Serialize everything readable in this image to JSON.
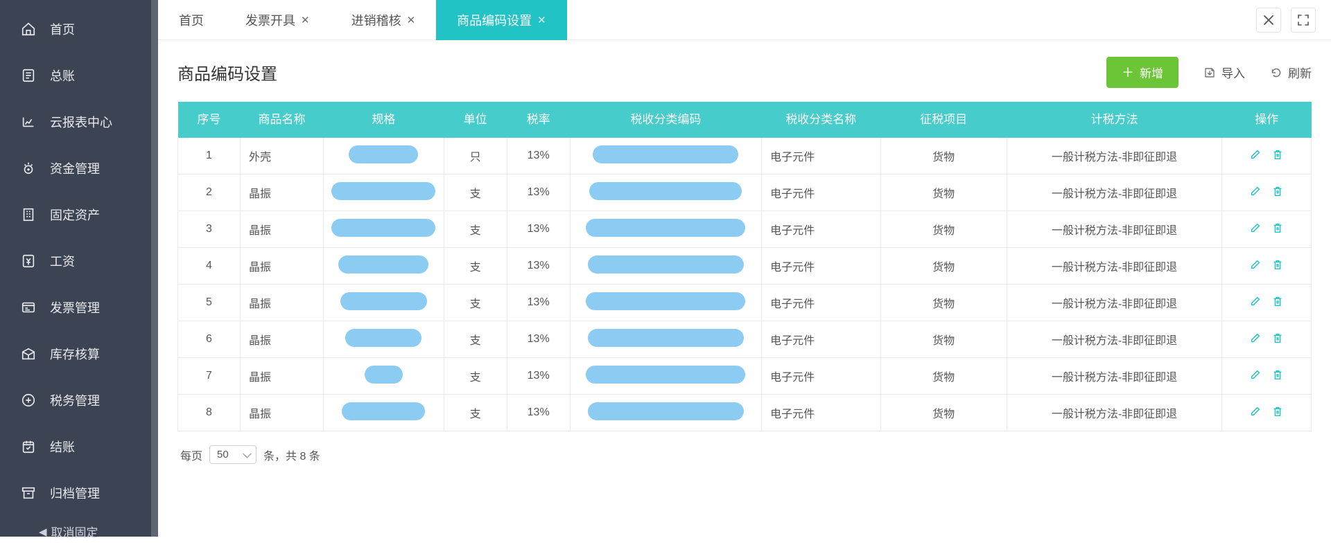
{
  "sidebar": {
    "items": [
      {
        "label": "首页",
        "icon": "home"
      },
      {
        "label": "总账",
        "icon": "ledger"
      },
      {
        "label": "云报表中心",
        "icon": "report"
      },
      {
        "label": "资金管理",
        "icon": "fund"
      },
      {
        "label": "固定资产",
        "icon": "building"
      },
      {
        "label": "工资",
        "icon": "salary"
      },
      {
        "label": "发票管理",
        "icon": "invoice"
      },
      {
        "label": "库存核算",
        "icon": "inventory"
      },
      {
        "label": "税务管理",
        "icon": "tax"
      },
      {
        "label": "结账",
        "icon": "close-period"
      },
      {
        "label": "归档管理",
        "icon": "archive"
      }
    ],
    "footer": "取消固定"
  },
  "tabs": [
    {
      "label": "首页",
      "closable": false,
      "active": false
    },
    {
      "label": "发票开具",
      "closable": true,
      "active": false
    },
    {
      "label": "进销稽核",
      "closable": true,
      "active": false
    },
    {
      "label": "商品编码设置",
      "closable": true,
      "active": true
    }
  ],
  "page": {
    "title": "商品编码设置",
    "actions": {
      "add": "新增",
      "import": "导入",
      "refresh": "刷新"
    }
  },
  "table": {
    "columns": [
      "序号",
      "商品名称",
      "规格",
      "单位",
      "税率",
      "税收分类编码",
      "税收分类名称",
      "征税项目",
      "计税方法",
      "操作"
    ],
    "header_bg": "#45cccb",
    "header_color": "#ffffff",
    "redaction_color": "#8cccf3",
    "rows": [
      {
        "idx": "1",
        "name": "外壳",
        "spec_w": 100,
        "unit": "只",
        "rate": "13%",
        "code_w": 210,
        "cat": "电子元件",
        "item": "货物",
        "method": "一般计税方法-非即征即退"
      },
      {
        "idx": "2",
        "name": "晶振",
        "spec_w": 150,
        "unit": "支",
        "rate": "13%",
        "code_w": 220,
        "cat": "电子元件",
        "item": "货物",
        "method": "一般计税方法-非即征即退"
      },
      {
        "idx": "3",
        "name": "晶振",
        "spec_w": 150,
        "unit": "支",
        "rate": "13%",
        "code_w": 230,
        "cat": "电子元件",
        "item": "货物",
        "method": "一般计税方法-非即征即退"
      },
      {
        "idx": "4",
        "name": "晶振",
        "spec_w": 130,
        "unit": "支",
        "rate": "13%",
        "code_w": 225,
        "cat": "电子元件",
        "item": "货物",
        "method": "一般计税方法-非即征即退"
      },
      {
        "idx": "5",
        "name": "晶振",
        "spec_w": 125,
        "unit": "支",
        "rate": "13%",
        "code_w": 230,
        "cat": "电子元件",
        "item": "货物",
        "method": "一般计税方法-非即征即退"
      },
      {
        "idx": "6",
        "name": "晶振",
        "spec_w": 110,
        "unit": "支",
        "rate": "13%",
        "code_w": 225,
        "cat": "电子元件",
        "item": "货物",
        "method": "一般计税方法-非即征即退"
      },
      {
        "idx": "7",
        "name": "晶振",
        "spec_w": 55,
        "unit": "支",
        "rate": "13%",
        "code_w": 230,
        "cat": "电子元件",
        "item": "货物",
        "method": "一般计税方法-非即征即退"
      },
      {
        "idx": "8",
        "name": "晶振",
        "spec_w": 120,
        "unit": "支",
        "rate": "13%",
        "code_w": 225,
        "cat": "电子元件",
        "item": "货物",
        "method": "一般计税方法-非即征即退"
      }
    ]
  },
  "pager": {
    "per_page_label_prefix": "每页",
    "per_page_value": "50",
    "suffix": "条，共 8 条"
  },
  "colors": {
    "sidebar_bg": "#3c4454",
    "accent": "#22c3c4",
    "primary_btn": "#6cc537"
  }
}
